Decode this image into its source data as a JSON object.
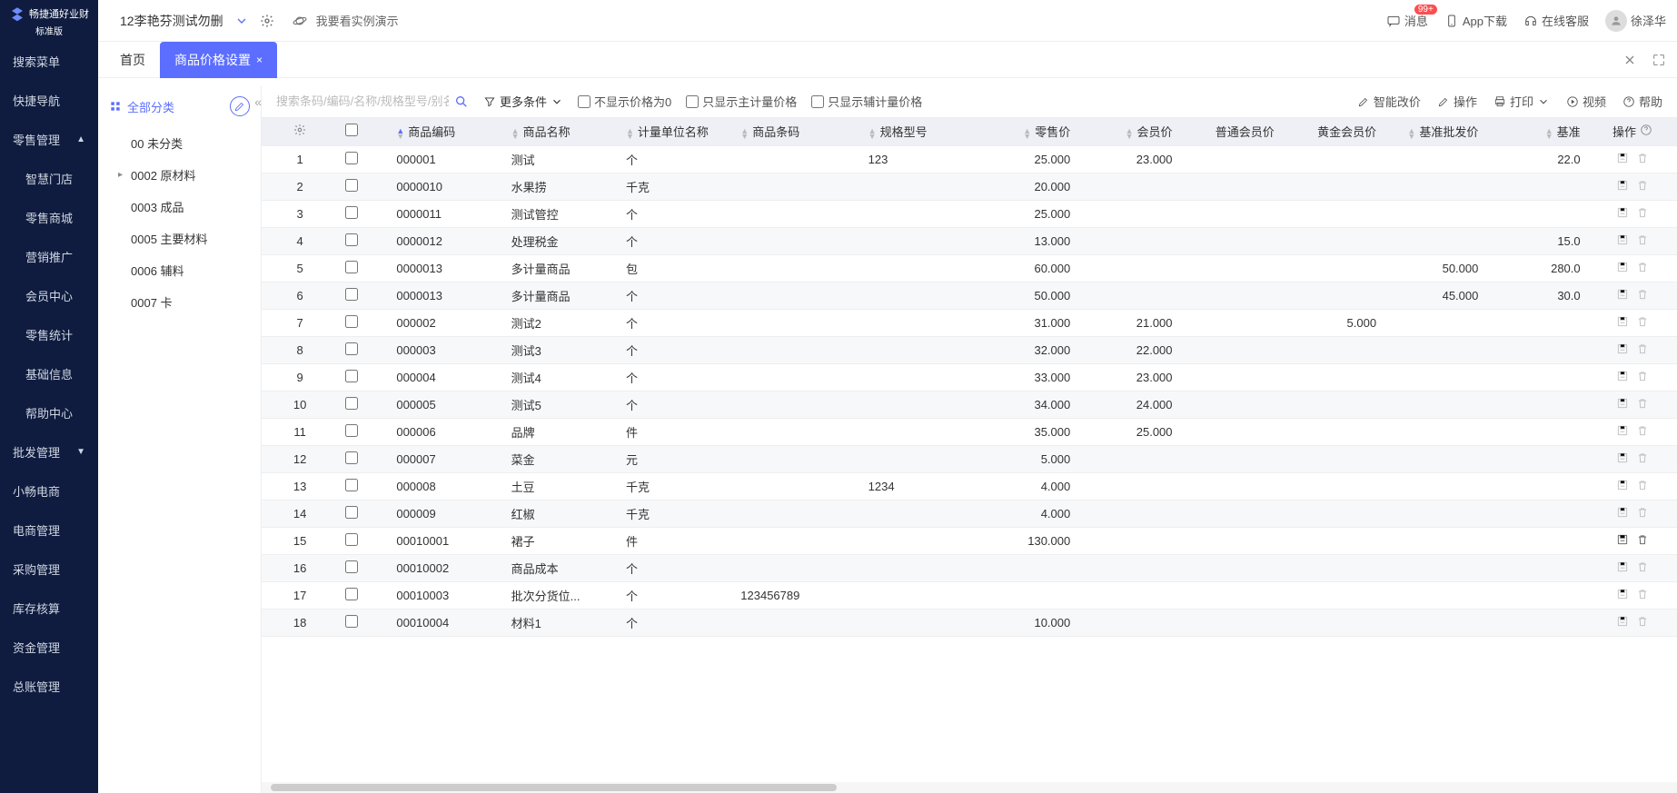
{
  "brand": {
    "name": "畅捷通好业财",
    "edition": "标准版"
  },
  "header": {
    "org": "12李艳芬测试勿删",
    "demo_label": "我要看实例演示",
    "msg_label": "消息",
    "msg_badge": "99+",
    "app_label": "App下载",
    "service_label": "在线客服",
    "user_name": "徐泽华"
  },
  "sidebar": {
    "items": [
      {
        "label": "搜索菜单"
      },
      {
        "label": "快捷导航"
      },
      {
        "label": "零售管理",
        "arrow": "▲",
        "expanded": true,
        "children": [
          {
            "label": "智慧门店"
          },
          {
            "label": "零售商城"
          },
          {
            "label": "营销推广"
          },
          {
            "label": "会员中心"
          },
          {
            "label": "零售统计"
          },
          {
            "label": "基础信息"
          },
          {
            "label": "帮助中心"
          }
        ]
      },
      {
        "label": "批发管理",
        "arrow": "▼"
      },
      {
        "label": "小畅电商"
      },
      {
        "label": "电商管理"
      },
      {
        "label": "采购管理"
      },
      {
        "label": "库存核算"
      },
      {
        "label": "资金管理"
      },
      {
        "label": "总账管理"
      }
    ]
  },
  "tabs": {
    "home": "首页",
    "active": "商品价格设置"
  },
  "categories": {
    "header": "全部分类",
    "items": [
      {
        "label": "00 未分类"
      },
      {
        "label": "0002 原材料",
        "has_children": true
      },
      {
        "label": "0003 成品"
      },
      {
        "label": "0005 主要材料"
      },
      {
        "label": "0006 辅料"
      },
      {
        "label": "0007 卡"
      }
    ]
  },
  "toolbar": {
    "search_placeholder": "搜索条码/编码/名称/规格型号/别名",
    "more": "更多条件",
    "chk1": "不显示价格为0",
    "chk2": "只显示主计量价格",
    "chk3": "只显示辅计量价格",
    "smart": "智能改价",
    "operate": "操作",
    "print": "打印",
    "video": "视频",
    "help": "帮助"
  },
  "table": {
    "columns": {
      "code": "商品编码",
      "name": "商品名称",
      "unit": "计量单位名称",
      "barcode": "商品条码",
      "spec": "规格型号",
      "retail": "零售价",
      "member": "会员价",
      "member_normal": "普通会员价",
      "member_gold": "黄金会员价",
      "wholesale": "基准批发价",
      "base": "基准",
      "ops": "操作"
    },
    "rows": [
      {
        "idx": "1",
        "code": "000001",
        "name": "测试",
        "unit": "个",
        "barcode": "",
        "spec": "123",
        "retail": "25.000",
        "member": "23.000",
        "wholesale": "",
        "base": "22.0"
      },
      {
        "idx": "2",
        "code": "0000010",
        "name": "水果捞",
        "unit": "千克",
        "retail": "20.000"
      },
      {
        "idx": "3",
        "code": "0000011",
        "name": "测试管控",
        "unit": "个",
        "retail": "25.000"
      },
      {
        "idx": "4",
        "code": "0000012",
        "name": "处理税金",
        "unit": "个",
        "retail": "13.000",
        "base": "15.0"
      },
      {
        "idx": "5",
        "code": "0000013",
        "name": "多计量商品",
        "unit": "包",
        "retail": "60.000",
        "wholesale": "50.000",
        "base": "280.0"
      },
      {
        "idx": "6",
        "code": "0000013",
        "name": "多计量商品",
        "unit": "个",
        "retail": "50.000",
        "wholesale": "45.000",
        "base": "30.0"
      },
      {
        "idx": "7",
        "code": "000002",
        "name": "测试2",
        "unit": "个",
        "retail": "31.000",
        "member": "21.000",
        "member_gold": "5.000"
      },
      {
        "idx": "8",
        "code": "000003",
        "name": "测试3",
        "unit": "个",
        "retail": "32.000",
        "member": "22.000"
      },
      {
        "idx": "9",
        "code": "000004",
        "name": "测试4",
        "unit": "个",
        "retail": "33.000",
        "member": "23.000"
      },
      {
        "idx": "10",
        "code": "000005",
        "name": "测试5",
        "unit": "个",
        "retail": "34.000",
        "member": "24.000"
      },
      {
        "idx": "11",
        "code": "000006",
        "name": "品牌",
        "unit": "件",
        "retail": "35.000",
        "member": "25.000"
      },
      {
        "idx": "12",
        "code": "000007",
        "name": "菜金",
        "unit": "元",
        "retail": "5.000"
      },
      {
        "idx": "13",
        "code": "000008",
        "name": "土豆",
        "unit": "千克",
        "spec": "1234",
        "retail": "4.000"
      },
      {
        "idx": "14",
        "code": "000009",
        "name": "红椒",
        "unit": "千克",
        "retail": "4.000"
      },
      {
        "idx": "15",
        "code": "00010001",
        "name": "裙子",
        "unit": "件",
        "retail": "130.000",
        "ops_dark": true
      },
      {
        "idx": "16",
        "code": "00010002",
        "name": "商品成本",
        "unit": "个"
      },
      {
        "idx": "17",
        "code": "00010003",
        "name": "批次分货位...",
        "unit": "个",
        "barcode": "123456789"
      },
      {
        "idx": "18",
        "code": "00010004",
        "name": "材料1",
        "unit": "个",
        "retail": "10.000"
      }
    ]
  }
}
